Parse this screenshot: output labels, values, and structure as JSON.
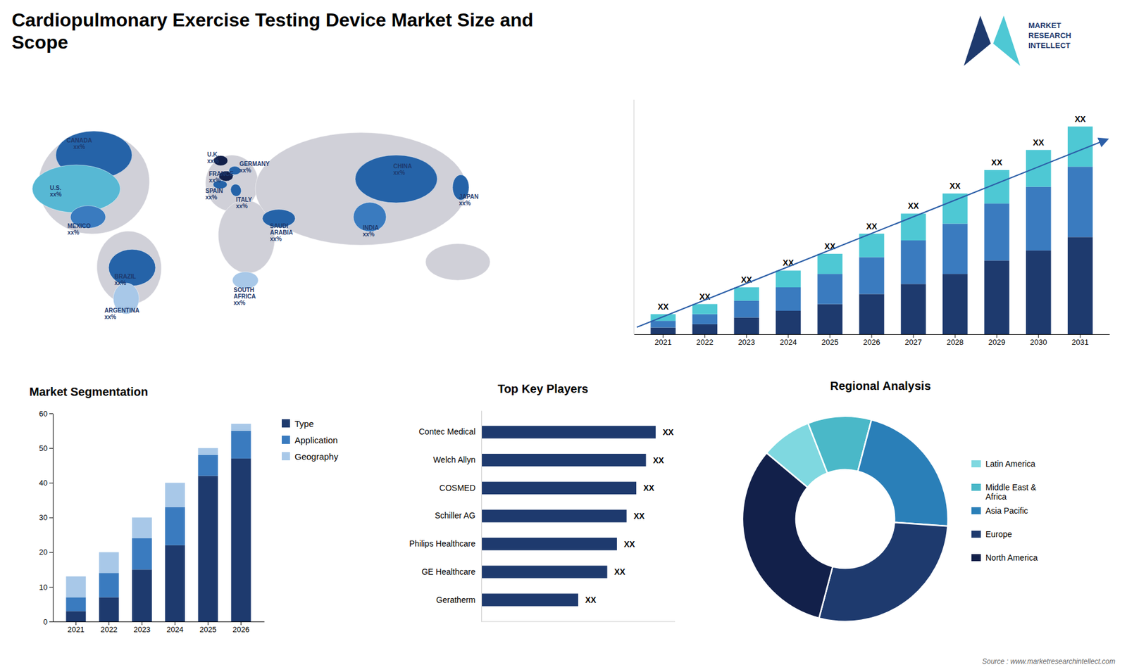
{
  "chart_data": [
    {
      "type": "map",
      "title": "Cardiopulmonary Exercise Testing Device Market Size and\nScope",
      "annotations": [
        "CANADA\nxx%",
        "U.S.\nxx%",
        "MEXICO\nxx%",
        "BRAZIL\nxx%",
        "ARGENTINA\nxx%",
        "U.K.\nxx%",
        "FRANCE\nxx%",
        "SPAIN\nxx%",
        "GERMANY\nxx%",
        "ITALY\nxx%",
        "SAUDI\nARABIA\nxx%",
        "SOUTH\nAFRICA\nxx%",
        "CHINA\nxx%",
        "INDIA\nxx%",
        "JAPAN\nxx%"
      ],
      "logo": "MARKET\nRESEARCH\nINTELLECT",
      "source": "Source : www.marketresearchintellect.com"
    },
    {
      "type": "bar",
      "stacked": true,
      "categories": [
        "2021",
        "2022",
        "2023",
        "2024",
        "2025",
        "2026",
        "2027",
        "2028",
        "2029",
        "2030",
        "2031"
      ],
      "series": [
        {
          "color": "#1e3a6e",
          "values": [
            2,
            3,
            5,
            7,
            9,
            12,
            15,
            18,
            22,
            25,
            29
          ]
        },
        {
          "color": "#3a7bbf",
          "values": [
            2,
            3,
            5,
            7,
            9,
            11,
            13,
            15,
            17,
            19,
            21
          ]
        },
        {
          "color": "#4ec8d4",
          "values": [
            2,
            3,
            4,
            5,
            6,
            7,
            8,
            9,
            10,
            11,
            12
          ],
          "value_labels": [
            "XX",
            "XX",
            "XX",
            "XX",
            "XX",
            "XX",
            "XX",
            "XX",
            "XX",
            "XX",
            "XX"
          ]
        }
      ],
      "ylim": [
        0,
        70
      ],
      "tick_labels": "x",
      "data_labels": true
    },
    {
      "type": "bar",
      "stacked": true,
      "title": "Market Segmentation",
      "categories": [
        "2021",
        "2022",
        "2023",
        "2024",
        "2025",
        "2026"
      ],
      "series": [
        {
          "name": "Type",
          "color": "#1e3a6e",
          "values": [
            3,
            7,
            15,
            22,
            42,
            47
          ]
        },
        {
          "name": "Application",
          "color": "#3a7bbf",
          "values": [
            4,
            7,
            9,
            11,
            6,
            8
          ]
        },
        {
          "name": "Geography",
          "color": "#a8c8e8",
          "values": [
            6,
            6,
            6,
            7,
            2,
            2
          ]
        }
      ],
      "ylim": [
        0,
        60
      ],
      "yticks": [
        0,
        10,
        20,
        30,
        40,
        50,
        60
      ],
      "legend": "right"
    },
    {
      "type": "bar",
      "orientation": "horizontal",
      "title": "Top Key Players",
      "categories": [
        "Contec Medical",
        "Welch Allyn",
        "COSMED",
        "Schiller AG",
        "Philips Healthcare",
        "GE Healthcare",
        "Geratherm"
      ],
      "values": [
        0.9,
        0.85,
        0.8,
        0.75,
        0.7,
        0.65,
        0.5
      ],
      "value_labels": [
        "XX",
        "XX",
        "XX",
        "XX",
        "XX",
        "XX",
        "XX"
      ],
      "color": "#1e3a6e",
      "xlim": [
        0,
        1
      ],
      "tick_labels": "y",
      "data_labels": true
    },
    {
      "type": "donut",
      "title": "Regional Analysis",
      "categories": [
        "Latin America",
        "Middle East &\nAfrica",
        "Asia Pacific",
        "Europe",
        "North America"
      ],
      "values": [
        0.08,
        0.1,
        0.22,
        0.28,
        0.32
      ],
      "colors": [
        "#7fd8e0",
        "#4ab8c8",
        "#2a7fb8",
        "#1e3a6e",
        "#12204a"
      ],
      "legend": "right"
    }
  ]
}
